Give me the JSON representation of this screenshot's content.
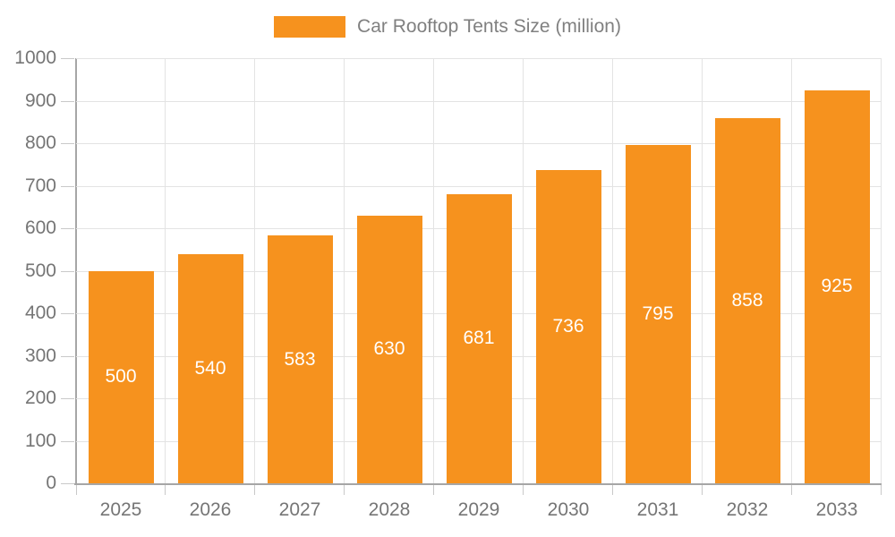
{
  "chart_data": {
    "type": "bar",
    "title": "Car Rooftop Tents Size (million)",
    "categories": [
      "2025",
      "2026",
      "2027",
      "2028",
      "2029",
      "2030",
      "2031",
      "2032",
      "2033"
    ],
    "series": [
      {
        "name": "Car Rooftop Tents Size (million)",
        "values": [
          500,
          540,
          583,
          630,
          681,
          736,
          795,
          858,
          925
        ]
      }
    ],
    "xlabel": "",
    "ylabel": "",
    "ylim": [
      0,
      1000
    ],
    "ytick_step": 100,
    "grid": true,
    "legend_position": "top",
    "bar_labels_visible": true
  },
  "legend": {
    "label": "Car Rooftop Tents Size (million)"
  },
  "colors": {
    "bar": "#f6921e",
    "bar_label": "#ffffff",
    "axis_line": "#a6a6a6",
    "grid_line": "#e3e3e3",
    "tick_mark": "#c9c9c9",
    "tick_label": "#757575",
    "legend_text": "#808080",
    "background": "#ffffff"
  }
}
